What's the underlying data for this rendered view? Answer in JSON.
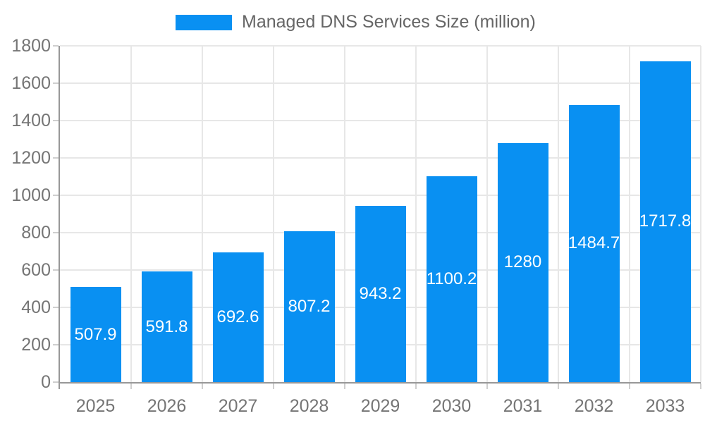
{
  "legend": {
    "label": "Managed DNS Services Size (million)",
    "position": "top"
  },
  "colors": {
    "bar": "#0990f2",
    "grid": "#e7e7e7",
    "axis": "#989898",
    "tick_mark": "#cfcfcf",
    "tick_label_text": "#757575",
    "legend_text": "#666666",
    "data_label_text": "#ffffff",
    "background": "#ffffff"
  },
  "chart_data": {
    "type": "bar",
    "title": "Managed DNS Services Size (million)",
    "categories": [
      "2025",
      "2026",
      "2027",
      "2028",
      "2029",
      "2030",
      "2031",
      "2032",
      "2033"
    ],
    "values": [
      507.9,
      591.8,
      692.6,
      807.2,
      943.2,
      1100.2,
      1280,
      1484.7,
      1717.8
    ],
    "series": [
      {
        "name": "Managed DNS Services Size (million)",
        "values": [
          507.9,
          591.8,
          692.6,
          807.2,
          943.2,
          1100.2,
          1280,
          1484.7,
          1717.8
        ]
      }
    ],
    "xlabel": "",
    "ylabel": "",
    "ylim": [
      0,
      1800
    ],
    "ytick_interval": 200,
    "ytick_labels": [
      "0",
      "200",
      "400",
      "600",
      "800",
      "1000",
      "1200",
      "1400",
      "1600",
      "1800"
    ],
    "grid": true,
    "legend_position": "top",
    "data_labels": "inside-center"
  }
}
